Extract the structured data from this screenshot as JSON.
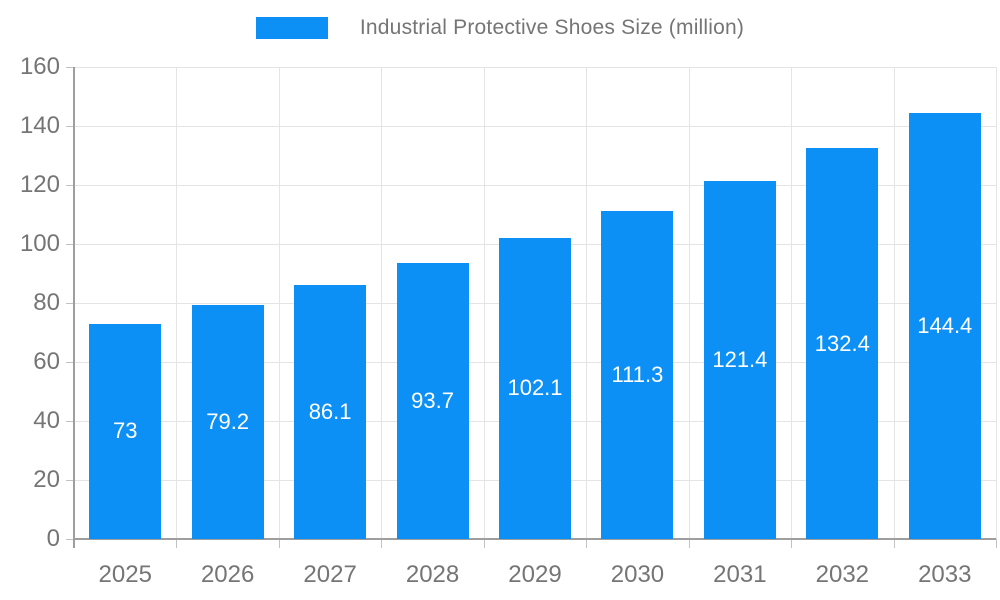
{
  "legend": {
    "label": "Industrial Protective Shoes Size (million)"
  },
  "colors": {
    "bar": "#0d90f5",
    "axis_text": "#757575",
    "grid": "#e4e4e4",
    "tick": "#c2c2c2",
    "axis_line": "#9e9e9e",
    "value_label": "#ffffff"
  },
  "chart_data": {
    "type": "bar",
    "title": "",
    "categories": [
      "2025",
      "2026",
      "2027",
      "2028",
      "2029",
      "2030",
      "2031",
      "2032",
      "2033"
    ],
    "values": [
      73,
      79.2,
      86.1,
      93.7,
      102.1,
      111.3,
      121.4,
      132.4,
      144.4
    ],
    "series_name": "Industrial Protective Shoes Size (million)",
    "xlabel": "",
    "ylabel": "",
    "ylim": [
      0,
      160
    ],
    "ytick_step": 20,
    "ytick_labels": [
      "0",
      "20",
      "40",
      "60",
      "80",
      "100",
      "120",
      "140",
      "160"
    ],
    "grid": true,
    "legend_position": "top",
    "value_labels_shown": true,
    "value_label_position": "center-of-bar"
  }
}
